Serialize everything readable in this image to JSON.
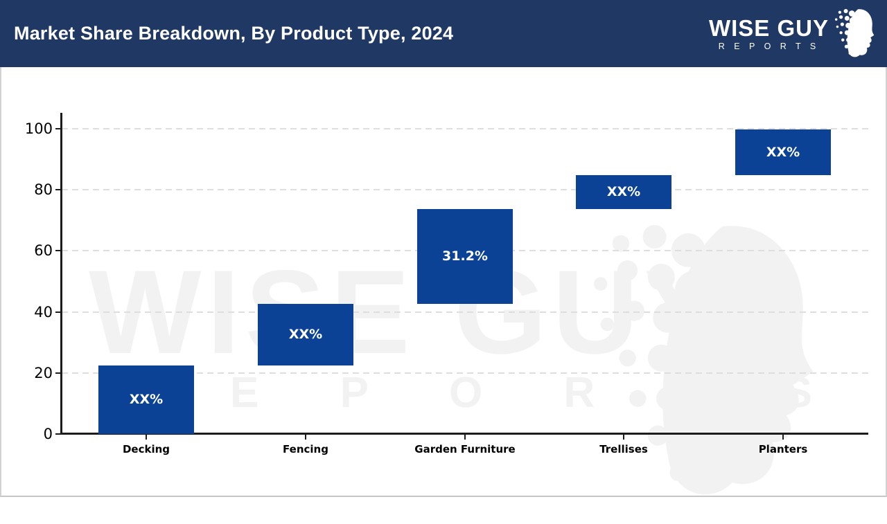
{
  "header": {
    "title": "Market Share Breakdown, By Product Type, 2024",
    "logo": {
      "word1": "WISE GUY",
      "word2": "R E P O R T S",
      "icon": "dotted-face-profile-icon"
    }
  },
  "watermark": {
    "word1": "WISE GUY",
    "word2": "R E P O R T S"
  },
  "chart_data": {
    "type": "bar",
    "subtype": "floating-waterfall",
    "title": "Market Share Breakdown, By Product Type, 2024",
    "categories": [
      "Decking",
      "Fencing",
      "Garden Furniture",
      "Trellises",
      "Planters"
    ],
    "bars": [
      {
        "category": "Decking",
        "start": 0,
        "end": 22.5,
        "label": "XX%"
      },
      {
        "category": "Fencing",
        "start": 22.5,
        "end": 42.6,
        "label": "XX%"
      },
      {
        "category": "Garden Furniture",
        "start": 42.6,
        "end": 73.8,
        "label": "31.2%"
      },
      {
        "category": "Trellises",
        "start": 73.8,
        "end": 84.8,
        "label": "XX%"
      },
      {
        "category": "Planters",
        "start": 84.8,
        "end": 99.8,
        "label": "XX%"
      }
    ],
    "xlabel": "",
    "ylabel": "",
    "yticks": [
      0,
      20,
      40,
      60,
      80,
      100
    ],
    "ylim": [
      0,
      105
    ],
    "grid": "horizontal-dashed",
    "legend": "none",
    "bar_color": "#0b4296",
    "bar_label_color": "#ffffff"
  },
  "colors": {
    "header_bg": "#1f3864",
    "bar_blue": "#0b4296",
    "watermark_gray": "#f2f2f2",
    "grid_gray": "#dedede",
    "axis_dark": "#1c1c1c"
  }
}
